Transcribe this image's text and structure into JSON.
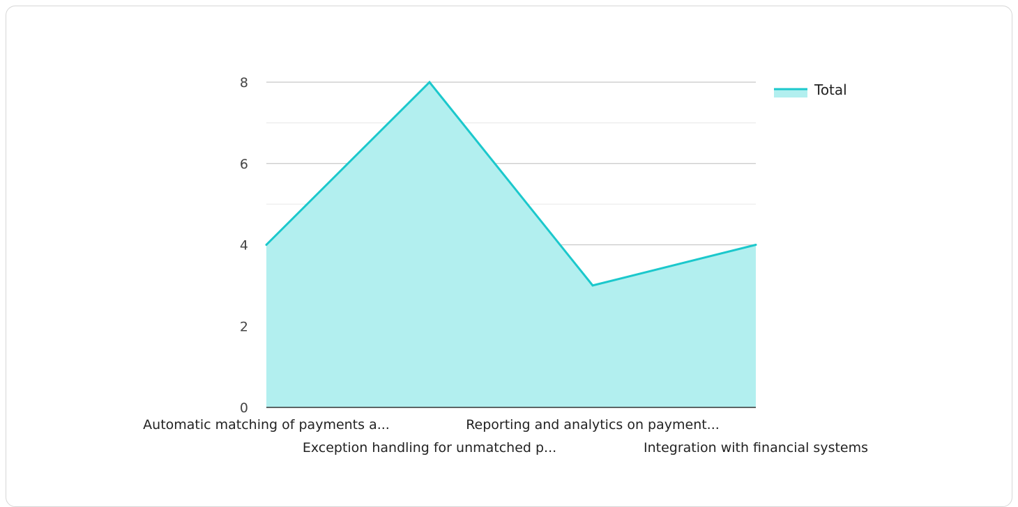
{
  "chart_data": {
    "type": "area",
    "categories": [
      "Automatic matching of payments a...",
      "Exception handling for unmatched p...",
      "Reporting and analytics on payment...",
      "Integration with financial systems"
    ],
    "series": [
      {
        "name": "Total",
        "values": [
          4,
          8,
          3,
          4
        ]
      }
    ],
    "yticks": [
      0,
      2,
      4,
      6,
      8
    ],
    "ylim": [
      0,
      8
    ],
    "grid": true,
    "legend": "top-right",
    "colors": {
      "line": "#1cc8cc",
      "fill": "#b2efef",
      "grid_major": "#c8c8c8",
      "grid_minor": "#e6e6e6",
      "axis": "#333333"
    }
  }
}
